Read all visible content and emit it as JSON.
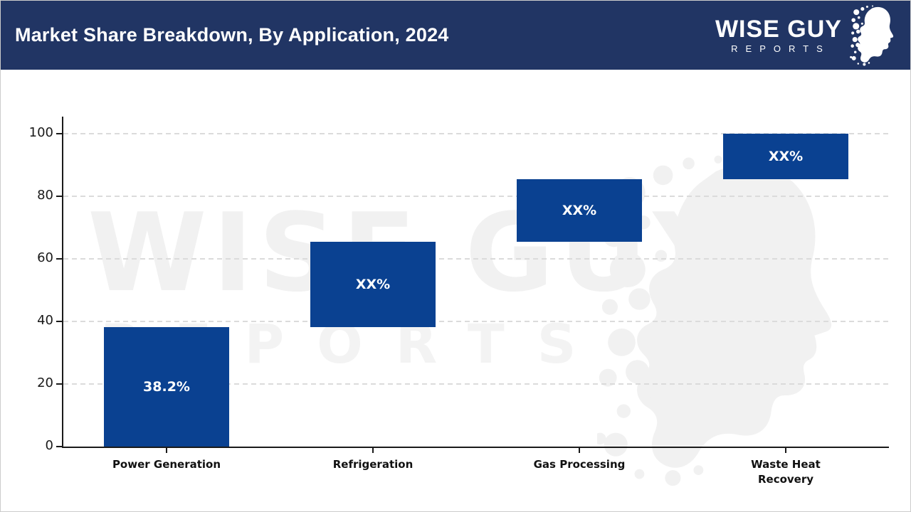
{
  "header": {
    "title": "Market Share Breakdown, By Application, 2024",
    "logo": {
      "line1": "WISE GUY",
      "line2": "REPORTS"
    },
    "background_color": "#213564"
  },
  "watermark": {
    "line1": "WISE GUY",
    "line2": "REPORTS"
  },
  "chart_data": {
    "type": "bar",
    "subtype": "waterfall",
    "title": "Market Share Breakdown, By Application, 2024",
    "categories": [
      "Power Generation",
      "Refrigeration",
      "Gas Processing",
      "Waste Heat Recovery"
    ],
    "bars": [
      {
        "category": "Power Generation",
        "label_lines": [
          "Power Generation"
        ],
        "start": 0,
        "end": 38.2,
        "value_label": "38.2%"
      },
      {
        "category": "Refrigeration",
        "label_lines": [
          "Refrigeration"
        ],
        "start": 38.2,
        "end": 65.4,
        "value_label": "XX%"
      },
      {
        "category": "Gas Processing",
        "label_lines": [
          "Gas Processing"
        ],
        "start": 65.4,
        "end": 85.4,
        "value_label": "XX%"
      },
      {
        "category": "Waste Heat Recovery",
        "label_lines": [
          "Waste Heat",
          "Recovery"
        ],
        "start": 85.5,
        "end": 100,
        "value_label": "XX%"
      }
    ],
    "xlabel": "",
    "ylabel": "",
    "yticks": [
      0,
      20,
      40,
      60,
      80,
      100
    ],
    "ylim": [
      0,
      105
    ],
    "grid": "horizontal-dashed",
    "legend": "none",
    "bar_color": "#0a4191",
    "grid_color": "#dbdbdb",
    "axis_color": "#1a1a1a"
  }
}
